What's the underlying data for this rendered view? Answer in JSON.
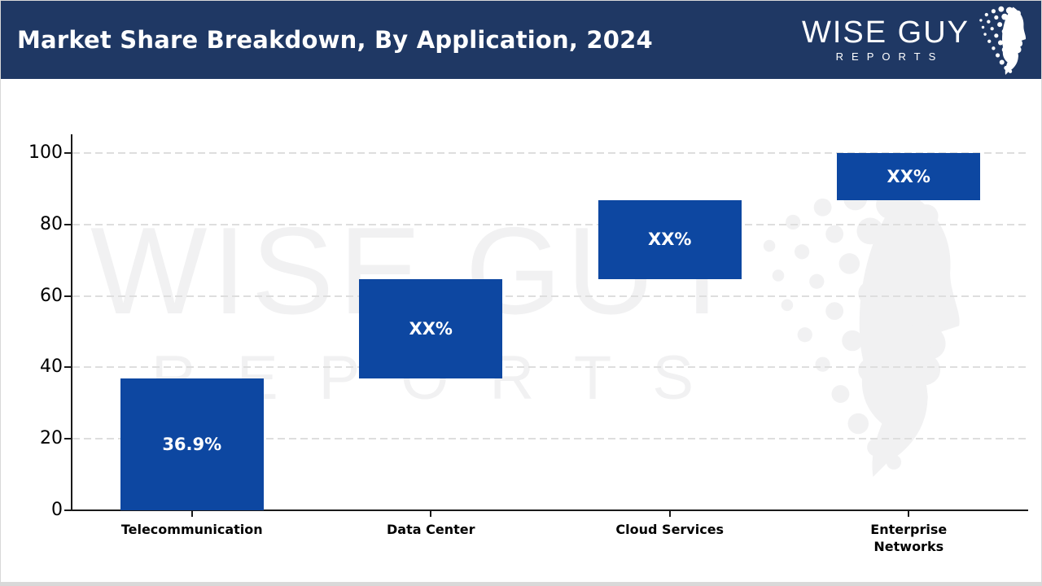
{
  "header": {
    "title": "Market Share Breakdown, By Application, 2024",
    "logo": {
      "line1": "WISE GUY",
      "line2": "REPORTS"
    }
  },
  "watermark": {
    "line1": "WISE GUY",
    "line2": "REPORTS"
  },
  "colors": {
    "header_bg": "#1f3864",
    "bar": "#0d47a1",
    "bar_label": "#ffffff",
    "axis": "#1a1a1a",
    "grid": "#dedede",
    "watermark": "#f1f1f2",
    "footer_strip": "#d9d9d9"
  },
  "chart_data": {
    "type": "bar",
    "subtype": "waterfall",
    "title": "Market Share Breakdown, By Application, 2024",
    "categories": [
      "Telecommunication",
      "Data Center",
      "Cloud Services",
      "Enterprise Networks"
    ],
    "xtick_label_lines": [
      [
        "Telecommunication"
      ],
      [
        "Data Center"
      ],
      [
        "Cloud Services"
      ],
      [
        "Enterprise",
        "Networks"
      ]
    ],
    "segments": [
      {
        "category": "Telecommunication",
        "start": 0,
        "end": 36.9,
        "label": "36.9%"
      },
      {
        "category": "Data Center",
        "start": 36.9,
        "end": 64.6,
        "label": "XX%"
      },
      {
        "category": "Cloud Services",
        "start": 64.6,
        "end": 86.9,
        "label": "XX%"
      },
      {
        "category": "Enterprise Networks",
        "start": 86.9,
        "end": 100,
        "label": "XX%"
      }
    ],
    "xlabel": "",
    "ylabel": "",
    "ylim": [
      0,
      100
    ],
    "yticks": [
      0,
      20,
      40,
      60,
      80,
      100
    ],
    "grid": "horizontal-dashed",
    "legend": "none"
  }
}
